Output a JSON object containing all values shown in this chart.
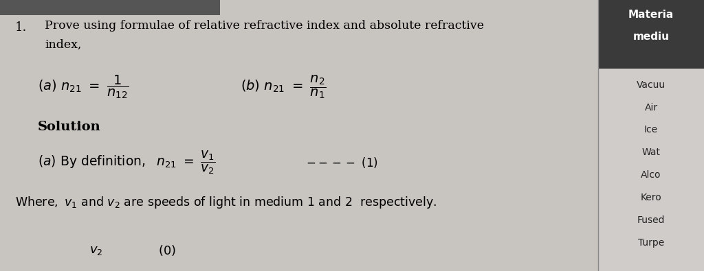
{
  "bg_color": "#c8c4c0",
  "right_panel_color": "#3a3a3a",
  "right_panel_header_color": "#3a3a3a",
  "right_panel_body_color": "#e8e4e0",
  "fig_width": 10.24,
  "fig_height": 3.95,
  "number": "1.",
  "question_line1": "Prove using formulae of relative refractive index and absolute refractive",
  "question_line2": "index,",
  "solution_label": "Solution",
  "right_header_line1": "Materia",
  "right_header_line2": "mediu",
  "right_items": [
    "Vacuu",
    "Air",
    "Ice",
    "Wat",
    "Alco",
    "Kero",
    "Fused",
    "Turpe"
  ]
}
